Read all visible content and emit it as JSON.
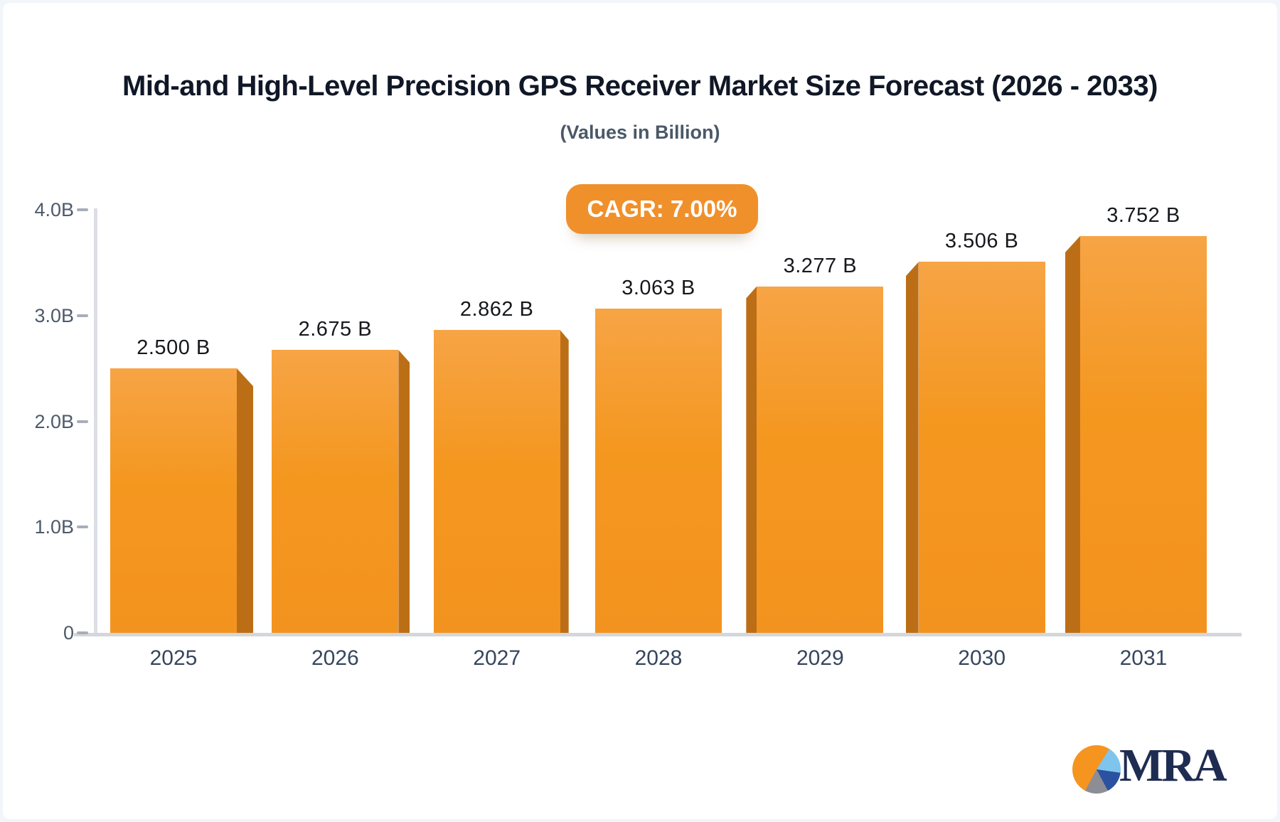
{
  "header": {
    "title": "Mid-and High-Level Precision GPS Receiver Market Size Forecast (2026 - 2033)",
    "subtitle": "(Values in Billion)"
  },
  "badge": {
    "label": "CAGR: 7.00%",
    "color": "#F0902A"
  },
  "chart_data": {
    "type": "bar",
    "title": "Mid-and High-Level Precision GPS Receiver Market Size Forecast (2026 - 2033)",
    "subtitle": "(Values in Billion)",
    "annotation": "CAGR: 7.00%",
    "categories": [
      "2025",
      "2026",
      "2027",
      "2028",
      "2029",
      "2030",
      "2031"
    ],
    "values": [
      2.5,
      2.675,
      2.862,
      3.063,
      3.277,
      3.506,
      3.752
    ],
    "value_labels": [
      "2.500 B",
      "2.675 B",
      "2.862 B",
      "3.063 B",
      "3.277 B",
      "3.506 B",
      "3.752 B"
    ],
    "unit": "Billion",
    "xlabel": "",
    "ylabel": "",
    "ylim": [
      0,
      4.0
    ],
    "yticks": [
      {
        "label": "4.0B",
        "value": 4.0
      },
      {
        "label": "3.0B",
        "value": 3.0
      },
      {
        "label": "2.0B",
        "value": 2.0
      },
      {
        "label": "1.0B",
        "value": 1.0
      },
      {
        "label": "0",
        "value": 0.0
      }
    ],
    "grid": false,
    "legend": "none",
    "bar_face_color": "#F3931F",
    "bar_face_highlight": "#F7A445",
    "bar_side_color": "#BC6E16"
  },
  "logo": {
    "text": "MRA",
    "text_color": "#1F2C52",
    "pie_colors": {
      "orange": "#F5941F",
      "light_blue": "#7FC4EC",
      "navy": "#2A52A0",
      "gray": "#8D8D95"
    }
  }
}
